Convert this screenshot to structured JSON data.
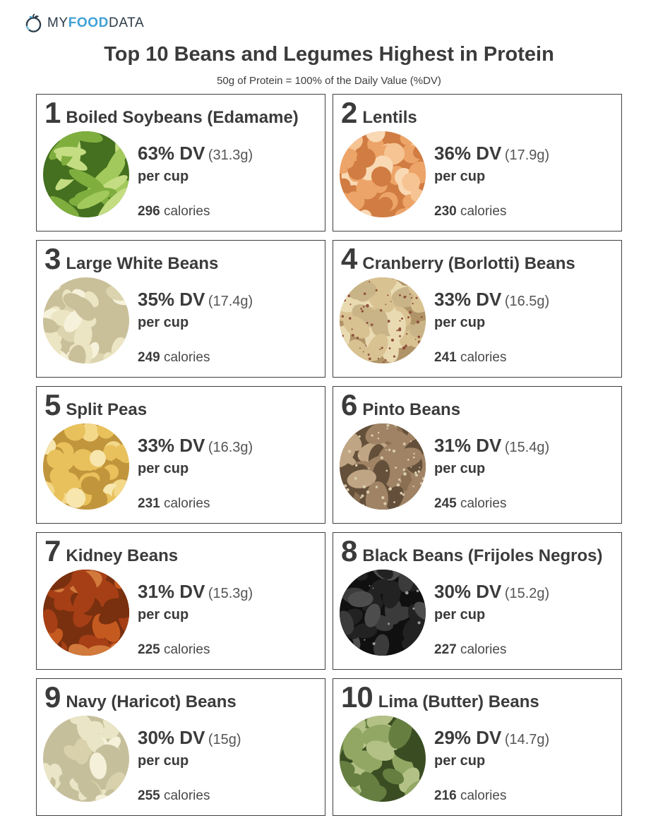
{
  "logo": {
    "part1": "MY",
    "part2": "FOOD",
    "part3": "DATA"
  },
  "colors": {
    "brand_navy": "#2c3b49",
    "brand_blue": "#41a0d6",
    "text_dark": "#3b3b3b",
    "text_gray": "#555555",
    "card_border": "#3f3f3f"
  },
  "title": "Top 10 Beans and Legumes Highest in Protein",
  "subtitle": "50g of Protein = 100% of the Daily Value (%DV)",
  "cards": [
    {
      "rank": "1",
      "name": "Boiled Soybeans (Edamame)",
      "dv": "63% DV",
      "grams": "(31.3g)",
      "per": "per cup",
      "calories": "296",
      "calories_unit": "calories",
      "image": {
        "name": "edamame",
        "shape": "pod",
        "palette": [
          "#7fae3e",
          "#a2c95b",
          "#44701f",
          "#c4dd82"
        ],
        "speckles": false
      }
    },
    {
      "rank": "2",
      "name": "Lentils",
      "dv": "36% DV",
      "grams": "(17.9g)",
      "per": "per cup",
      "calories": "230",
      "calories_unit": "calories",
      "image": {
        "name": "lentils",
        "shape": "disc",
        "palette": [
          "#eda468",
          "#f6c392",
          "#d07c42",
          "#f9d9b4"
        ],
        "speckles": false
      }
    },
    {
      "rank": "3",
      "name": "Large White Beans",
      "dv": "35% DV",
      "grams": "(17.4g)",
      "per": "per cup",
      "calories": "249",
      "calories_unit": "calories",
      "image": {
        "name": "large-white-beans",
        "shape": "oval",
        "palette": [
          "#ece5c3",
          "#f6f1da",
          "#c9c09a",
          "#dcd4ae"
        ],
        "speckles": false
      }
    },
    {
      "rank": "4",
      "name": "Cranberry (Borlotti) Beans",
      "dv": "33% DV",
      "grams": "(16.5g)",
      "per": "per cup",
      "calories": "241",
      "calories_unit": "calories",
      "image": {
        "name": "cranberry-beans",
        "shape": "bigoval",
        "palette": [
          "#d9c291",
          "#e9dab2",
          "#b09467",
          "#c9b488"
        ],
        "speckles": true,
        "speckle_color": "#8f4f3c",
        "speckle_count": 70
      }
    },
    {
      "rank": "5",
      "name": "Split Peas",
      "dv": "33% DV",
      "grams": "(16.3g)",
      "per": "per cup",
      "calories": "231",
      "calories_unit": "calories",
      "image": {
        "name": "split-peas",
        "shape": "disc",
        "palette": [
          "#e9c15c",
          "#f3d88a",
          "#c1953b",
          "#f7e6ad"
        ],
        "speckles": false
      }
    },
    {
      "rank": "6",
      "name": "Pinto Beans",
      "dv": "31% DV",
      "grams": "(15.4g)",
      "per": "per cup",
      "calories": "245",
      "calories_unit": "calories",
      "image": {
        "name": "pinto-beans",
        "shape": "bigoval",
        "palette": [
          "#a08365",
          "#c0a584",
          "#64503a",
          "#8a6f52"
        ],
        "speckles": true,
        "speckle_color": "#d9cbab",
        "speckle_count": 60
      }
    },
    {
      "rank": "7",
      "name": "Kidney Beans",
      "dv": "31% DV",
      "grams": "(15.3g)",
      "per": "per cup",
      "calories": "225",
      "calories_unit": "calories",
      "image": {
        "name": "kidney-beans",
        "shape": "bigoval",
        "palette": [
          "#a63f16",
          "#c55a20",
          "#79300f",
          "#d27a3b"
        ],
        "speckles": false
      }
    },
    {
      "rank": "8",
      "name": "Black Beans (Frijoles Negros)",
      "dv": "30% DV",
      "grams": "(15.2g)",
      "per": "per cup",
      "calories": "227",
      "calories_unit": "calories",
      "image": {
        "name": "black-beans",
        "shape": "oval",
        "palette": [
          "#222222",
          "#3b3b3b",
          "#101010",
          "#4d4d4d"
        ],
        "speckles": true,
        "speckle_color": "#9a9a9a",
        "speckle_count": 12
      }
    },
    {
      "rank": "9",
      "name": "Navy (Haricot) Beans",
      "dv": "30% DV",
      "grams": "(15g)",
      "per": "per cup",
      "calories": "255",
      "calories_unit": "calories",
      "image": {
        "name": "navy-beans",
        "shape": "oval",
        "palette": [
          "#e9e5c6",
          "#f4f0d9",
          "#c6bf9b",
          "#d8d1ab"
        ],
        "speckles": false
      }
    },
    {
      "rank": "10",
      "name": "Lima (Butter) Beans",
      "dv": "29% DV",
      "grams": "(14.7g)",
      "per": "per cup",
      "calories": "216",
      "calories_unit": "calories",
      "image": {
        "name": "lima-beans",
        "shape": "bigoval",
        "palette": [
          "#667f41",
          "#91a763",
          "#3a4d22",
          "#b3c186"
        ],
        "speckles": false
      }
    }
  ]
}
